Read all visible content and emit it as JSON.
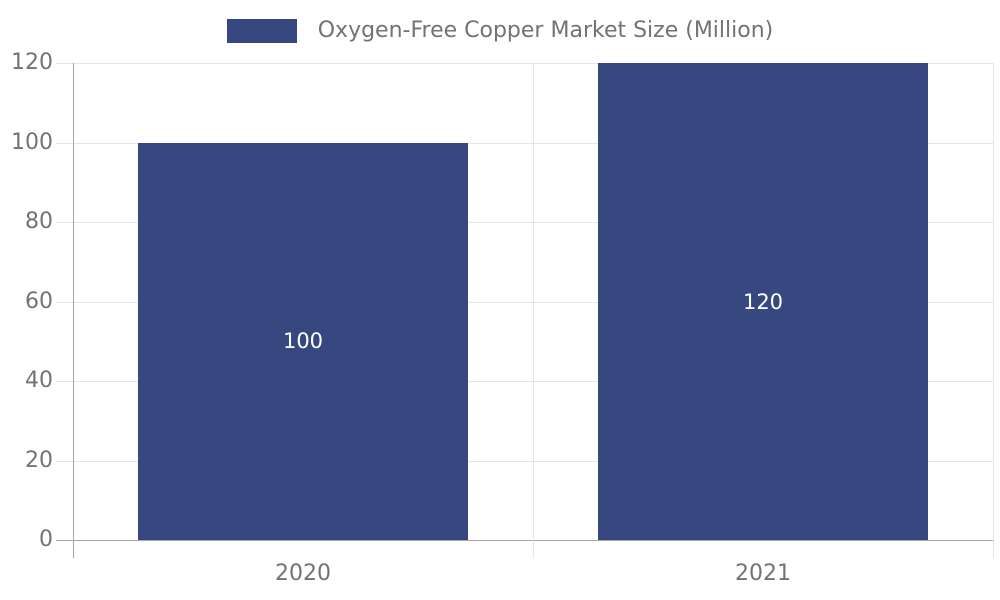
{
  "chart_data": {
    "type": "bar",
    "title": "Oxygen-Free Copper Market Size (Million)",
    "categories": [
      "2020",
      "2021"
    ],
    "values": [
      100,
      120
    ],
    "value_labels": [
      "100",
      "120"
    ],
    "xlabel": "",
    "ylabel": "",
    "ylim": [
      0,
      120
    ],
    "yticks": [
      0,
      20,
      40,
      60,
      80,
      100,
      120
    ],
    "grid": true,
    "legend_position": "top-center",
    "legend_entries": [
      "Oxygen-Free Copper Market Size (Million)"
    ],
    "colors": {
      "bar": "#36487f",
      "bar_value_label": "#ffffff",
      "axis_line": "#a6a6a6",
      "grid_line": "#e5e5e5",
      "tick_text": "#737373",
      "legend_text": "#737373"
    }
  }
}
